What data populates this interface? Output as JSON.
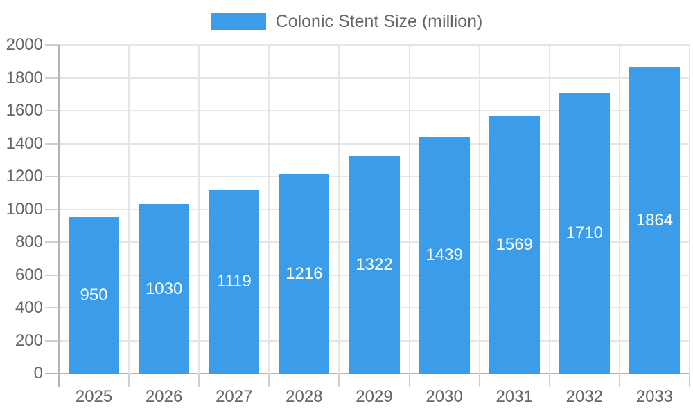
{
  "chart_data": {
    "type": "bar",
    "title": "",
    "legend": {
      "label": "Colonic Stent Size (million)",
      "position": "top"
    },
    "categories": [
      "2025",
      "2026",
      "2027",
      "2028",
      "2029",
      "2030",
      "2031",
      "2032",
      "2033"
    ],
    "values": [
      950,
      1030,
      1119,
      1216,
      1322,
      1439,
      1569,
      1710,
      1864
    ],
    "xlabel": "",
    "ylabel": "",
    "ylim": [
      0,
      2000
    ],
    "ytick_step": 200,
    "grid": "both",
    "legend_position": "top",
    "colors": {
      "bar": "#3b9cea",
      "bar_label": "#ffffff",
      "axis_text": "#666666",
      "gridline": "#e5e5e5",
      "zero_line": "#b4b4b4",
      "tick": "#cfcfcf"
    }
  }
}
